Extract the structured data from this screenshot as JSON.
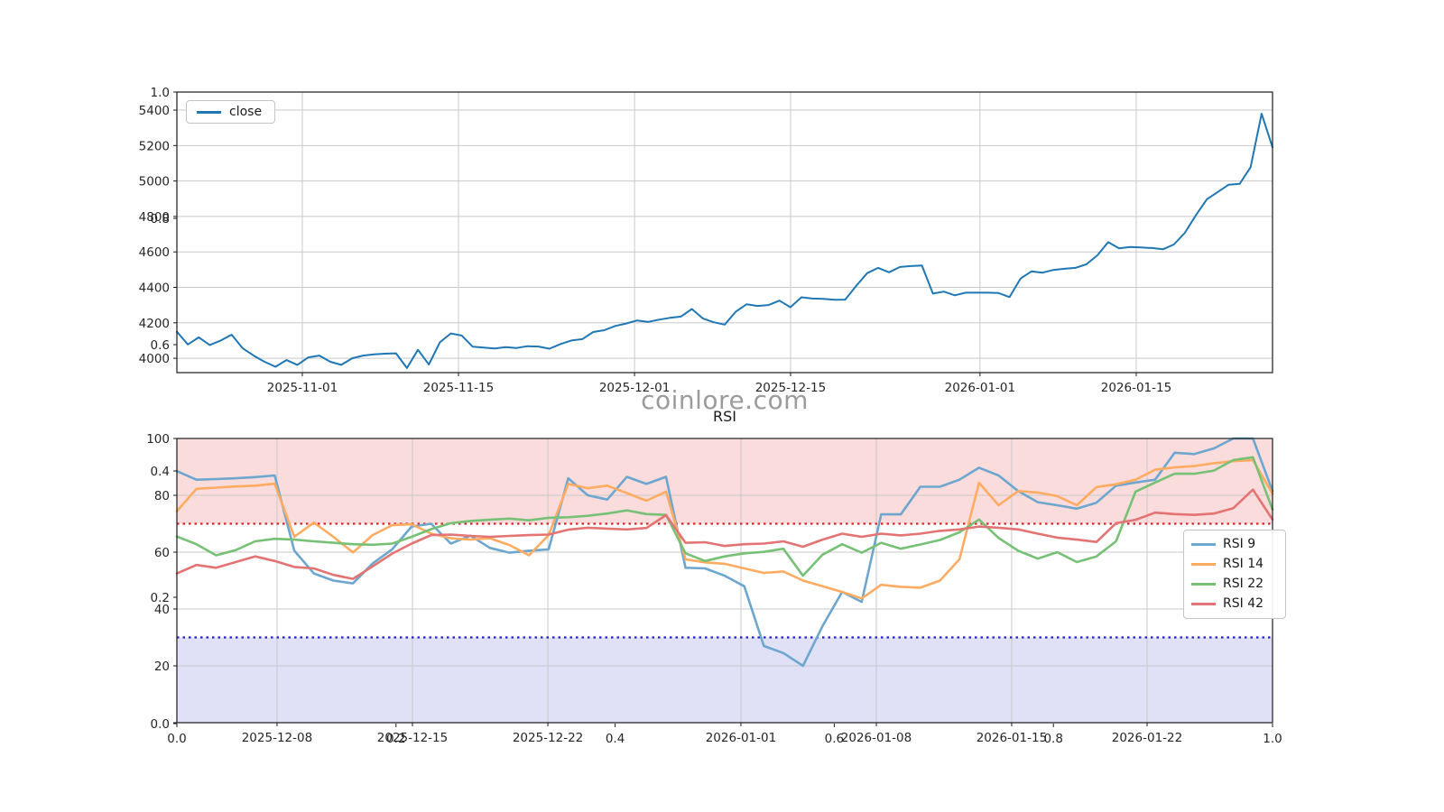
{
  "watermark": "coinlore.com",
  "rsi_title": "RSI",
  "overlay_axis": {
    "x_tick_labels": [
      "0.0",
      "0.2",
      "0.4",
      "0.6",
      "0.8",
      "1.0"
    ],
    "y_tick_labels": [
      "1.0",
      "0.8",
      "0.6",
      "0.4",
      "0.2",
      "0.0"
    ]
  },
  "chart_data": [
    {
      "type": "line",
      "title": "",
      "xlabel": "",
      "ylabel": "",
      "x_range_dates": [
        "2025-10-21",
        "2026-01-28"
      ],
      "x_tick_labels": [
        "2025-11-01",
        "2025-11-15",
        "2025-12-01",
        "2025-12-15",
        "2026-01-01",
        "2026-01-15"
      ],
      "x_tick_pos": [
        0.1145,
        0.257,
        0.4177,
        0.5601,
        0.733,
        0.8756
      ],
      "y_tick_values": [
        4000,
        4200,
        4400,
        4600,
        4800,
        5000,
        5200,
        5400
      ],
      "y_tick_labels": [
        "4000",
        "4200",
        "4400",
        "4600",
        "4800",
        "5000",
        "5200",
        "5400"
      ],
      "ylim": [
        3919,
        5502
      ],
      "grid": true,
      "legend_position": "upper-left",
      "series": [
        {
          "name": "close",
          "color": "#1f77b4",
          "width": 2,
          "values": [
            4150,
            4078,
            4118,
            4075,
            4100,
            4133,
            4057,
            4015,
            3980,
            3952,
            3990,
            3963,
            4005,
            4015,
            3980,
            3963,
            4000,
            4015,
            4022,
            4026,
            4028,
            3945,
            4048,
            3965,
            4090,
            4140,
            4128,
            4065,
            4060,
            4055,
            4063,
            4058,
            4068,
            4066,
            4054,
            4080,
            4100,
            4108,
            4148,
            4158,
            4182,
            4196,
            4213,
            4205,
            4218,
            4228,
            4235,
            4278,
            4225,
            4203,
            4190,
            4262,
            4305,
            4295,
            4300,
            4325,
            4288,
            4344,
            4337,
            4335,
            4330,
            4331,
            4408,
            4480,
            4510,
            4485,
            4515,
            4520,
            4523,
            4365,
            4376,
            4355,
            4370,
            4370,
            4370,
            4368,
            4345,
            4450,
            4490,
            4483,
            4498,
            4505,
            4510,
            4530,
            4580,
            4655,
            4620,
            4628,
            4625,
            4622,
            4615,
            4642,
            4708,
            4806,
            4897,
            4938,
            4979,
            4984,
            5078,
            5380,
            5190
          ]
        }
      ]
    },
    {
      "type": "line",
      "title": "RSI",
      "xlabel": "",
      "ylabel": "",
      "x_range_dates": [
        "2025-12-03",
        "2026-01-28"
      ],
      "x_tick_labels": [
        "2025-12-08",
        "2025-12-15",
        "2025-12-22",
        "2026-01-01",
        "2026-01-08",
        "2026-01-15",
        "2026-01-22"
      ],
      "x_tick_pos": [
        0.0914,
        0.215,
        0.3386,
        0.5148,
        0.6384,
        0.7619,
        0.8855
      ],
      "y_tick_values": [
        0,
        20,
        40,
        60,
        80,
        100
      ],
      "y_tick_labels": [
        "",
        "20",
        "40",
        "60",
        "80",
        "100"
      ],
      "ylim": [
        0,
        100
      ],
      "grid": true,
      "overbought_level": 70,
      "oversold_level": 30,
      "overbought_band_color": "#fbdcdc",
      "oversold_band_color": "#e0e0f6",
      "overbought_line_color": "#d62728",
      "oversold_line_color": "#2222cc",
      "legend_position": "center-right",
      "series": [
        {
          "name": "RSI 9",
          "color": "#6da6ce",
          "width": 2.6,
          "values": [
            88.5,
            85.5,
            85.7,
            86,
            86.4,
            87,
            60.5,
            52.5,
            50,
            49,
            56,
            61,
            69,
            70,
            63,
            65.8,
            61.5,
            59.8,
            60.5,
            61,
            86,
            80,
            78.5,
            86.5,
            84,
            86.5,
            54.5,
            54.3,
            51.7,
            48,
            27,
            24.5,
            20,
            34,
            46,
            42.5,
            73.3,
            73.3,
            83,
            83,
            85.5,
            89.7,
            87,
            81.5,
            77.6,
            76.5,
            75.3,
            77.4,
            83.4,
            84.5,
            85.5,
            95,
            94.5,
            96.5,
            100,
            100,
            81.5
          ]
        },
        {
          "name": "RSI 14",
          "color": "#ffac62",
          "width": 2.6,
          "values": [
            74.4,
            82.3,
            82.7,
            83.1,
            83.4,
            84.1,
            65.4,
            70.4,
            65.4,
            59.9,
            66,
            69.5,
            69.8,
            66.5,
            64.9,
            64.4,
            64.9,
            62.5,
            58.9,
            66,
            84,
            82.5,
            83.4,
            80.8,
            78.1,
            81.3,
            57.5,
            56.4,
            55.9,
            54.3,
            52.7,
            53.2,
            50,
            48,
            46,
            43.7,
            48.5,
            47.8,
            47.5,
            50,
            57.5,
            84.4,
            76.5,
            81.5,
            81,
            79.7,
            76.5,
            82.9,
            83.9,
            85.5,
            89,
            89.8,
            90.3,
            91.3,
            92,
            92.4,
            80.5
          ]
        },
        {
          "name": "RSI 22",
          "color": "#76c176",
          "width": 2.6,
          "values": [
            65.5,
            62.8,
            58.9,
            60.7,
            63.8,
            64.7,
            64.4,
            63.8,
            63.3,
            62.8,
            62.6,
            63,
            65.4,
            68.1,
            70.2,
            71,
            71.4,
            71.8,
            71.2,
            72.1,
            72.3,
            72.8,
            73.6,
            74.7,
            73.4,
            73.1,
            59.6,
            56.9,
            58.5,
            59.6,
            60.1,
            61.2,
            51.7,
            59.1,
            62.8,
            59.8,
            63.3,
            61.2,
            62.7,
            64.3,
            67,
            71.5,
            65,
            60.5,
            57.7,
            60,
            56.5,
            58.5,
            63.8,
            81.3,
            84.5,
            87.6,
            87.6,
            88.7,
            92.4,
            93.4,
            75
          ]
        },
        {
          "name": "RSI 42",
          "color": "#e47373",
          "width": 2.6,
          "values": [
            52.5,
            55.5,
            54.5,
            56.5,
            58.5,
            56.9,
            54.8,
            54.3,
            52,
            50.6,
            55,
            59.5,
            63,
            66,
            66.2,
            65.7,
            65.4,
            65.7,
            66,
            66.2,
            67.9,
            68.6,
            68.3,
            68,
            68.5,
            73,
            63.3,
            63.5,
            62.2,
            62.8,
            63,
            63.8,
            61.9,
            64.4,
            66.5,
            65.4,
            66.5,
            65.9,
            66.5,
            67.5,
            68,
            69,
            68.6,
            68,
            66.5,
            65.1,
            64.4,
            63.6,
            70.2,
            71.4,
            73.9,
            73.4,
            73.1,
            73.6,
            75.5,
            82,
            71.5
          ]
        }
      ]
    }
  ]
}
